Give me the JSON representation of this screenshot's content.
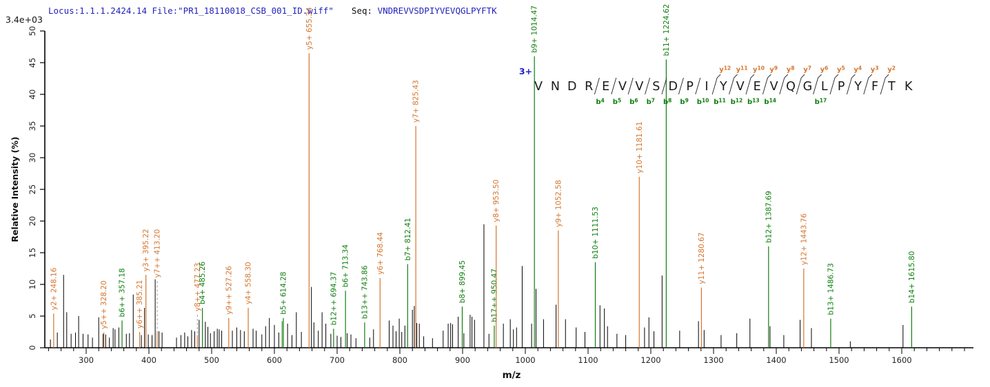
{
  "header": {
    "locus_file": "Locus:1.1.1.2424.14 File:\"PR1_18110018_CSB_001_ID.wiff\"",
    "seq_label": "Seq:",
    "sequence": "VNDREVVSDPIYVEVQGLPYFTK"
  },
  "chart_data": {
    "type": "bar",
    "subtype": "ms2-mass-spectrum",
    "title": "",
    "xlabel": "m/z",
    "ylabel": "Relative  Intensity (%)",
    "intensity_scale_note": "3.4e+03",
    "precursor_charge": "3+",
    "xlim": [
      234,
      1710
    ],
    "ylim": [
      0,
      50
    ],
    "x_major_ticks": [
      300,
      400,
      500,
      600,
      700,
      800,
      900,
      1000,
      1100,
      1200,
      1300,
      1400,
      1500,
      1600
    ],
    "x_minor_step": 20,
    "y_ticks": [
      0,
      5,
      10,
      15,
      20,
      25,
      30,
      35,
      40,
      45,
      50
    ],
    "grid": false,
    "colors": {
      "y_ion": "#d4752e",
      "b_ion": "#0e7e0e",
      "noise": "#000000",
      "header_blue": "#2323bb",
      "charge_blue": "#2222cc",
      "dashed_gray": "#999999",
      "axis": "#000000",
      "residue": "#1a1a1a"
    },
    "annotated_peaks": [
      {
        "label": "y2+ 248.16",
        "mz": 248.16,
        "pct": 5.4,
        "series": "y"
      },
      {
        "label": "y5++ 328.20",
        "mz": 328.2,
        "pct": 2.4,
        "series": "y"
      },
      {
        "label": "b6++ 357.18",
        "mz": 357.18,
        "pct": 4.3,
        "series": "b"
      },
      {
        "label": "y6++ 385.21",
        "mz": 385.21,
        "pct": 2.5,
        "series": "y"
      },
      {
        "label": "y3+ 395.22",
        "mz": 395.22,
        "pct": 11.5,
        "series": "y"
      },
      {
        "label": "y7++ 413.20",
        "mz": 413.2,
        "pct": 2.6,
        "label_pct": 10.5,
        "dashed": true,
        "series": "y"
      },
      {
        "label": "y8++ 477.23",
        "mz": 477.23,
        "pct": 2.0,
        "label_pct": 5.2,
        "dashed": true,
        "series": "y"
      },
      {
        "label": "b4+ 485.26",
        "mz": 485.26,
        "pct": 6.3,
        "series": "b"
      },
      {
        "label": "y9++ 527.26",
        "mz": 527.26,
        "pct": 4.7,
        "series": "y"
      },
      {
        "label": "y4+ 558.30",
        "mz": 558.3,
        "pct": 6.3,
        "series": "y"
      },
      {
        "label": "b5+ 614.28",
        "mz": 614.28,
        "pct": 4.7,
        "series": "b"
      },
      {
        "label": "y5+ 655.34",
        "mz": 655.34,
        "pct": 46.5,
        "series": "y"
      },
      {
        "label": "b12++ 694.37",
        "mz": 694.37,
        "pct": 3.0,
        "series": "b"
      },
      {
        "label": "b6+ 713.34",
        "mz": 713.34,
        "pct": 9.0,
        "series": "b"
      },
      {
        "label": "b13++ 743.86",
        "mz": 743.86,
        "pct": 4.0,
        "series": "b"
      },
      {
        "label": "y6+ 768.44",
        "mz": 768.44,
        "pct": 11.0,
        "series": "y"
      },
      {
        "label": "b7+ 812.41",
        "mz": 812.41,
        "pct": 13.2,
        "series": "b"
      },
      {
        "label": "y7+ 825.43",
        "mz": 825.43,
        "pct": 35.0,
        "series": "y"
      },
      {
        "label": "b8+ 899.45",
        "mz": 899.45,
        "pct": 6.5,
        "series": "b"
      },
      {
        "label": "b17++ 950.47",
        "mz": 950.47,
        "pct": 3.5,
        "series": "b"
      },
      {
        "label": "y8+ 953.50",
        "mz": 953.5,
        "pct": 19.3,
        "series": "y"
      },
      {
        "label": "b9+ 1014.47",
        "mz": 1014.47,
        "pct": 46.0,
        "series": "b"
      },
      {
        "label": "y9+ 1052.58",
        "mz": 1052.58,
        "pct": 18.5,
        "series": "y"
      },
      {
        "label": "b10+ 1111.53",
        "mz": 1111.53,
        "pct": 13.5,
        "series": "b"
      },
      {
        "label": "y10+ 1181.61",
        "mz": 1181.61,
        "pct": 27.0,
        "series": "y"
      },
      {
        "label": "b11+ 1224.62",
        "mz": 1224.62,
        "pct": 45.5,
        "series": "b"
      },
      {
        "label": "y11+ 1280.67",
        "mz": 1280.67,
        "pct": 9.5,
        "series": "y"
      },
      {
        "label": "b12+ 1387.69",
        "mz": 1387.69,
        "pct": 16.0,
        "series": "b"
      },
      {
        "label": "y12+ 1443.76",
        "mz": 1443.76,
        "pct": 12.5,
        "series": "y"
      },
      {
        "label": "b13+ 1486.73",
        "mz": 1486.73,
        "pct": 4.6,
        "series": "b"
      },
      {
        "label": "b14+ 1615.80",
        "mz": 1615.8,
        "pct": 6.5,
        "series": "b"
      }
    ],
    "unlabeled_green_peaks": [
      [
        612.3,
        4.2
      ]
    ],
    "noise_peaks": [
      [
        243,
        1.3
      ],
      [
        254,
        2.4
      ],
      [
        264,
        11.5
      ],
      [
        269,
        5.6
      ],
      [
        276,
        2.2
      ],
      [
        283,
        2.4
      ],
      [
        288,
        5.0
      ],
      [
        295,
        2.2
      ],
      [
        303,
        2.1
      ],
      [
        310,
        1.6
      ],
      [
        320,
        4.8
      ],
      [
        327,
        2.2
      ],
      [
        331,
        2.1
      ],
      [
        337,
        1.6
      ],
      [
        343,
        3.1
      ],
      [
        346,
        2.9
      ],
      [
        352,
        3.2
      ],
      [
        364,
        2.2
      ],
      [
        369,
        2.3
      ],
      [
        375,
        8.4
      ],
      [
        388,
        2.0
      ],
      [
        393,
        6.3
      ],
      [
        399,
        2.1
      ],
      [
        405,
        2.0
      ],
      [
        410,
        10.8
      ],
      [
        416,
        2.6
      ],
      [
        421,
        2.4
      ],
      [
        444,
        1.6
      ],
      [
        451,
        2.0
      ],
      [
        457,
        2.4
      ],
      [
        462,
        1.8
      ],
      [
        468,
        2.8
      ],
      [
        473,
        2.6
      ],
      [
        480,
        4.4
      ],
      [
        490,
        4.1
      ],
      [
        494,
        3.3
      ],
      [
        498,
        2.3
      ],
      [
        504,
        2.6
      ],
      [
        509,
        3.0
      ],
      [
        512,
        2.9
      ],
      [
        516,
        2.7
      ],
      [
        533,
        2.7
      ],
      [
        540,
        3.2
      ],
      [
        546,
        2.8
      ],
      [
        552,
        2.6
      ],
      [
        566,
        3.0
      ],
      [
        571,
        2.7
      ],
      [
        580,
        2.1
      ],
      [
        586,
        3.4
      ],
      [
        592,
        4.7
      ],
      [
        600,
        3.6
      ],
      [
        607,
        2.4
      ],
      [
        621,
        3.8
      ],
      [
        628,
        2.0
      ],
      [
        635,
        5.6
      ],
      [
        643,
        2.5
      ],
      [
        659,
        9.6
      ],
      [
        663,
        4.0
      ],
      [
        670,
        2.7
      ],
      [
        676,
        5.6
      ],
      [
        682,
        3.8
      ],
      [
        690,
        2.2
      ],
      [
        700,
        1.9
      ],
      [
        706,
        1.7
      ],
      [
        716,
        2.3
      ],
      [
        722,
        2.1
      ],
      [
        730,
        1.5
      ],
      [
        752,
        1.6
      ],
      [
        758,
        2.9
      ],
      [
        783,
        4.3
      ],
      [
        789,
        3.5
      ],
      [
        794,
        2.6
      ],
      [
        799,
        4.6
      ],
      [
        803,
        2.5
      ],
      [
        808,
        3.5
      ],
      [
        820,
        6.0
      ],
      [
        823,
        6.6
      ],
      [
        827,
        3.9
      ],
      [
        831,
        3.8
      ],
      [
        838,
        1.8
      ],
      [
        852,
        1.5
      ],
      [
        869,
        2.7
      ],
      [
        877,
        3.8
      ],
      [
        881,
        3.9
      ],
      [
        884,
        3.7
      ],
      [
        893,
        4.9
      ],
      [
        902,
        2.3
      ],
      [
        912,
        5.2
      ],
      [
        915,
        4.9
      ],
      [
        919,
        4.4
      ],
      [
        934,
        19.5
      ],
      [
        942,
        2.2
      ],
      [
        965,
        3.8
      ],
      [
        976,
        4.5
      ],
      [
        981,
        2.9
      ],
      [
        986,
        3.2
      ],
      [
        995,
        12.9
      ],
      [
        1010,
        3.8
      ],
      [
        1017,
        9.3
      ],
      [
        1029,
        4.5
      ],
      [
        1049,
        6.8
      ],
      [
        1064,
        4.5
      ],
      [
        1081,
        3.2
      ],
      [
        1095,
        2.5
      ],
      [
        1119,
        6.7
      ],
      [
        1126,
        6.2
      ],
      [
        1131,
        3.4
      ],
      [
        1146,
        2.2
      ],
      [
        1160,
        2.0
      ],
      [
        1190,
        3.2
      ],
      [
        1197,
        4.8
      ],
      [
        1205,
        2.6
      ],
      [
        1218,
        11.4
      ],
      [
        1246,
        2.7
      ],
      [
        1276,
        4.2
      ],
      [
        1285,
        2.8
      ],
      [
        1312,
        2.0
      ],
      [
        1337,
        2.3
      ],
      [
        1358,
        4.6
      ],
      [
        1390,
        3.4
      ],
      [
        1412,
        2.0
      ],
      [
        1438,
        4.4
      ],
      [
        1456,
        3.1
      ],
      [
        1518,
        1.0
      ],
      [
        1602,
        3.6
      ]
    ],
    "sequence_annotation": {
      "residues": "VNDREVVSDPIYVEVQGLPYFTK",
      "charge": "3+",
      "b_ions": [
        {
          "gap": 4,
          "text": "b4"
        },
        {
          "gap": 5,
          "text": "b5"
        },
        {
          "gap": 6,
          "text": "b6"
        },
        {
          "gap": 7,
          "text": "b7"
        },
        {
          "gap": 8,
          "text": "b8"
        },
        {
          "gap": 9,
          "text": "b9"
        },
        {
          "gap": 10,
          "text": "b10"
        },
        {
          "gap": 11,
          "text": "b11"
        },
        {
          "gap": 12,
          "text": "b12"
        },
        {
          "gap": 13,
          "text": "b13"
        },
        {
          "gap": 14,
          "text": "b14"
        },
        {
          "gap": 17,
          "text": "b17"
        }
      ],
      "y_ions": [
        {
          "gap": 11,
          "text": "y12"
        },
        {
          "gap": 12,
          "text": "y11"
        },
        {
          "gap": 13,
          "text": "y10"
        },
        {
          "gap": 14,
          "text": "y9"
        },
        {
          "gap": 15,
          "text": "y8"
        },
        {
          "gap": 16,
          "text": "y7"
        },
        {
          "gap": 17,
          "text": "y6"
        },
        {
          "gap": 18,
          "text": "y5"
        },
        {
          "gap": 19,
          "text": "y4"
        },
        {
          "gap": 20,
          "text": "y3"
        },
        {
          "gap": 21,
          "text": "y2"
        }
      ]
    }
  }
}
